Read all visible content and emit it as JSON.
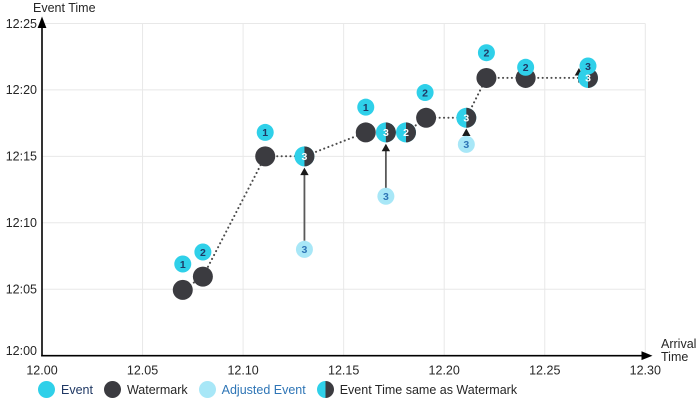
{
  "chart_data": {
    "type": "scatter",
    "title": "",
    "xlabel": "Arrival Time",
    "xlabel_lines": [
      "Arrival",
      "Time"
    ],
    "ylabel": "Event Time",
    "grid": true,
    "xlim_minutes_after_1200": [
      0,
      30
    ],
    "ylim_minutes_after_1200": [
      0,
      25
    ],
    "x_axis": {
      "ticks": [
        {
          "label": "12.00",
          "v": 0
        },
        {
          "label": "12.05",
          "v": 5
        },
        {
          "label": "12.10",
          "v": 10
        },
        {
          "label": "12.15",
          "v": 15
        },
        {
          "label": "12.20",
          "v": 20
        },
        {
          "label": "12.25",
          "v": 25
        },
        {
          "label": "12.30",
          "v": 30
        }
      ]
    },
    "y_axis": {
      "ticks": [
        {
          "label": "12:00",
          "v": 0
        },
        {
          "label": "12:05",
          "v": 5
        },
        {
          "label": "12:10",
          "v": 10
        },
        {
          "label": "12:15",
          "v": 15
        },
        {
          "label": "12:20",
          "v": 20
        },
        {
          "label": "12:25",
          "v": 25
        }
      ]
    },
    "points": [
      {
        "type": "event",
        "label": "1",
        "x": 7.0,
        "y": 6.9
      },
      {
        "type": "event",
        "label": "2",
        "x": 8.0,
        "y": 7.8
      },
      {
        "type": "watermark",
        "label": "",
        "x": 7.0,
        "y": 4.95
      },
      {
        "type": "watermark",
        "label": "",
        "x": 8.0,
        "y": 5.95
      },
      {
        "type": "event",
        "label": "1",
        "x": 11.1,
        "y": 16.8
      },
      {
        "type": "watermark",
        "label": "",
        "x": 11.1,
        "y": 15.0
      },
      {
        "type": "same",
        "label": "3",
        "x": 13.05,
        "y": 15.0
      },
      {
        "type": "adjusted",
        "label": "3",
        "x": 13.05,
        "y": 8.0
      },
      {
        "type": "event",
        "label": "1",
        "x": 16.1,
        "y": 18.7
      },
      {
        "type": "watermark",
        "label": "",
        "x": 16.1,
        "y": 16.8
      },
      {
        "type": "same",
        "label": "3",
        "x": 17.1,
        "y": 16.8
      },
      {
        "type": "adjusted",
        "label": "3",
        "x": 17.1,
        "y": 12.0
      },
      {
        "type": "same",
        "label": "2",
        "x": 18.1,
        "y": 16.8
      },
      {
        "type": "watermark",
        "label": "",
        "x": 19.1,
        "y": 17.9
      },
      {
        "type": "event",
        "label": "2",
        "x": 19.05,
        "y": 19.8
      },
      {
        "type": "same",
        "label": "3",
        "x": 21.1,
        "y": 17.9
      },
      {
        "type": "adjusted",
        "label": "3",
        "x": 21.1,
        "y": 15.9
      },
      {
        "type": "watermark",
        "label": "",
        "x": 22.1,
        "y": 20.9
      },
      {
        "type": "event",
        "label": "2",
        "x": 22.1,
        "y": 22.8
      },
      {
        "type": "watermark",
        "label": "",
        "x": 24.05,
        "y": 20.9
      },
      {
        "type": "event",
        "label": "2",
        "x": 24.05,
        "y": 21.7
      },
      {
        "type": "same",
        "label": "3",
        "x": 27.15,
        "y": 20.9
      },
      {
        "type": "event",
        "label": "3",
        "x": 27.15,
        "y": 21.8
      }
    ],
    "watermark_path": [
      [
        7.0,
        4.95
      ],
      [
        8.0,
        5.95
      ],
      [
        11.1,
        15.0
      ],
      [
        13.05,
        15.0
      ],
      [
        16.1,
        16.8
      ],
      [
        17.1,
        16.8
      ],
      [
        18.1,
        16.8
      ],
      [
        19.1,
        17.9
      ],
      [
        21.1,
        17.9
      ],
      [
        22.1,
        20.9
      ],
      [
        24.05,
        20.9
      ],
      [
        27.15,
        20.9
      ]
    ],
    "arrows": [
      {
        "x": 13.05,
        "y_from": 8.65,
        "y_to": 14.15
      },
      {
        "x": 17.1,
        "y_from": 12.6,
        "y_to": 15.95
      },
      {
        "x": 21.1,
        "y_from": 16.5,
        "y_to": 17.1
      },
      {
        "x": 26.7,
        "y_from": 20.55,
        "y_to": 21.65
      }
    ],
    "legend": [
      {
        "id": "event",
        "label": "Event"
      },
      {
        "id": "watermark",
        "label": "Watermark"
      },
      {
        "id": "adjusted",
        "label": "Adjusted Event"
      },
      {
        "id": "same",
        "label": "Event Time same as Watermark"
      }
    ]
  },
  "colors": {
    "event": "#2FD0E9",
    "event_number": "#1F3864",
    "watermark": "#3B3B40",
    "adjusted": "#A8E7F7",
    "adjusted_number": "#2E75B6",
    "same_left": "#2FD0E9",
    "same_right": "#3B3B40",
    "same_number": "#FFFFFF",
    "grid": "#E8E8E8",
    "axis": "#000000",
    "dotted_line": "#4A4A4A",
    "arrow": "#595959",
    "arrow_head": "#1A1A1A",
    "tick_text": "#262626"
  }
}
